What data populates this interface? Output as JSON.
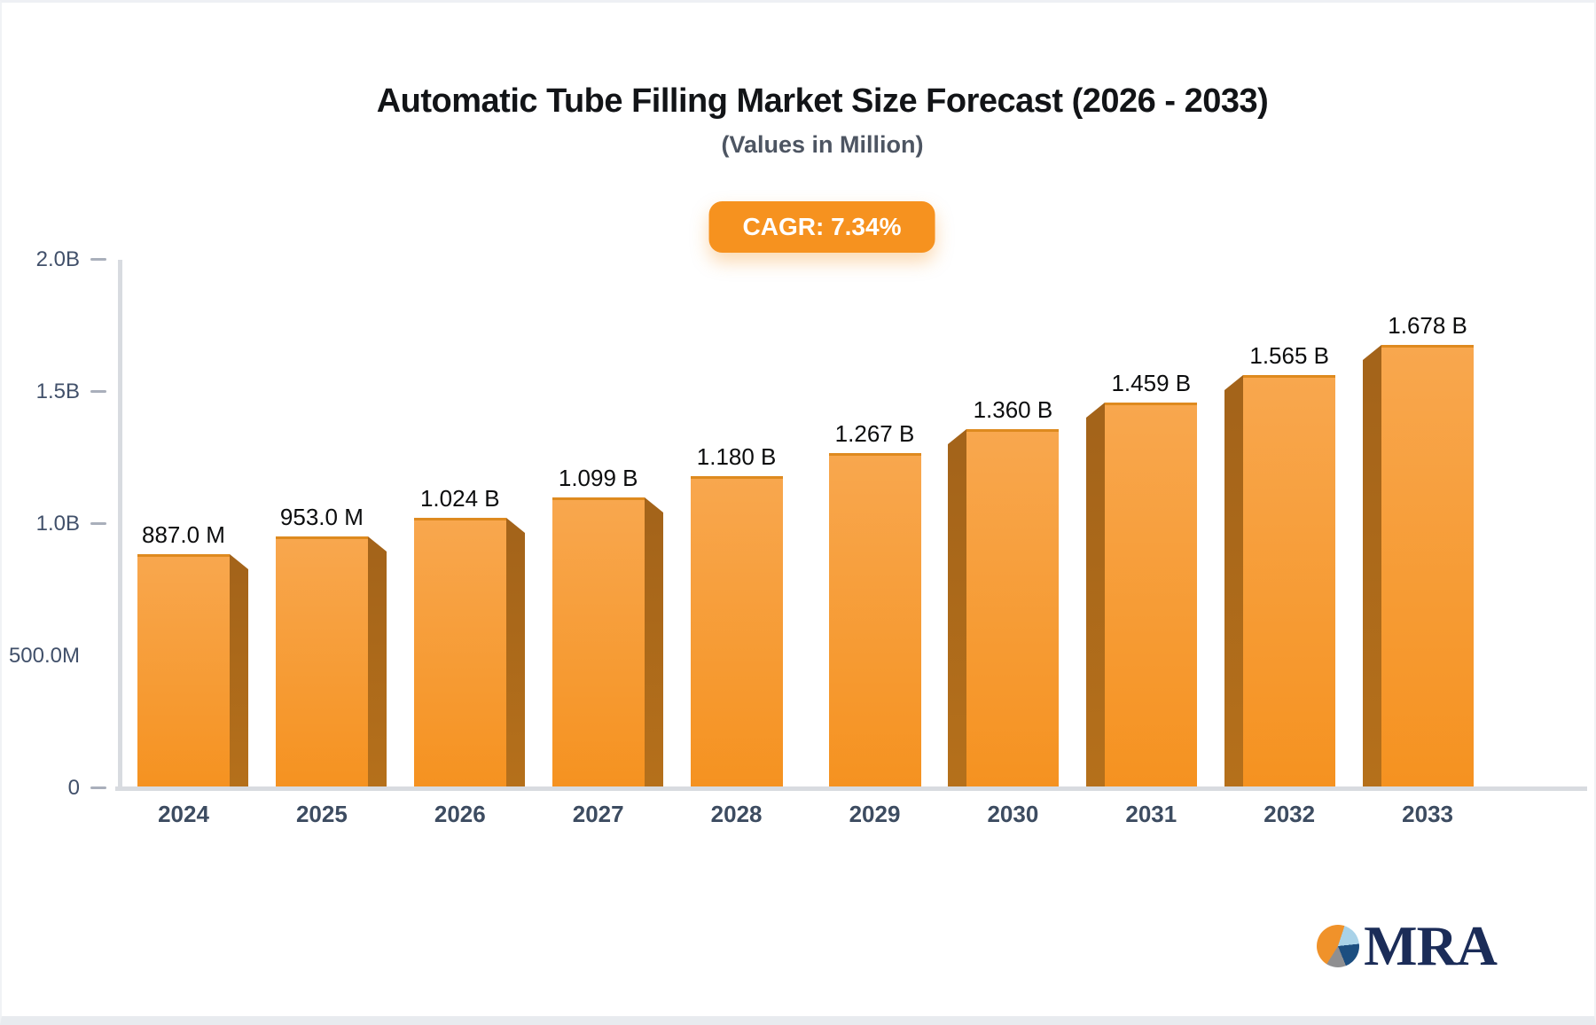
{
  "title": "Automatic Tube Filling Market Size Forecast (2026 - 2033)",
  "subtitle": "(Values in Million)",
  "cagr_badge": "CAGR: 7.34%",
  "chart_data": {
    "type": "bar",
    "title": "Automatic Tube Filling Market Size Forecast (2026 - 2033)",
    "subtitle": "(Values in Million)",
    "annotation": "CAGR: 7.34%",
    "categories": [
      "2024",
      "2025",
      "2026",
      "2027",
      "2028",
      "2029",
      "2030",
      "2031",
      "2032",
      "2033"
    ],
    "values_millions": [
      887,
      953,
      1024,
      1099,
      1180,
      1267,
      1360,
      1459,
      1565,
      1678
    ],
    "value_labels": [
      "887.0 M",
      "953.0 M",
      "1.024 B",
      "1.099 B",
      "1.180 B",
      "1.267 B",
      "1.360 B",
      "1.459 B",
      "1.565 B",
      "1.678 B"
    ],
    "xlabel": "",
    "ylabel": "",
    "ylim_millions": [
      0,
      2000
    ],
    "ytick_labels": [
      "2.0B",
      "1.5B",
      "1.0B",
      "500.0M",
      "0"
    ],
    "ytick_values_millions": [
      2000,
      1500,
      1000,
      500,
      0
    ],
    "ytick_dash": [
      true,
      true,
      true,
      false,
      true
    ],
    "grid": false,
    "legend": "none",
    "bar_color_top": "#F8A74E",
    "bar_color_bottom": "#F59220",
    "bar_top_edge_color": "#DE8A1F",
    "bar_side_color": "#A96719",
    "style": "3d-effect bars, side shading toward center vanishing point"
  },
  "colors": {
    "badge_orange": "#F6921F",
    "axis_line": "#D8DBE0",
    "tick_dash": "#A9AFBB",
    "ytick_text": "#41506A",
    "year_text": "#3D4C61",
    "value_text": "#0C0D0E",
    "title_text": "#121417",
    "subtitle_text": "#4D5562"
  },
  "logo": {
    "text": "MRA",
    "icon": "pie-chart-logo-icon",
    "pie_colors": [
      "#F0922A",
      "#A9D2E8",
      "#1C4E80",
      "#8F8F91"
    ],
    "text_color": "#1B2C58"
  }
}
